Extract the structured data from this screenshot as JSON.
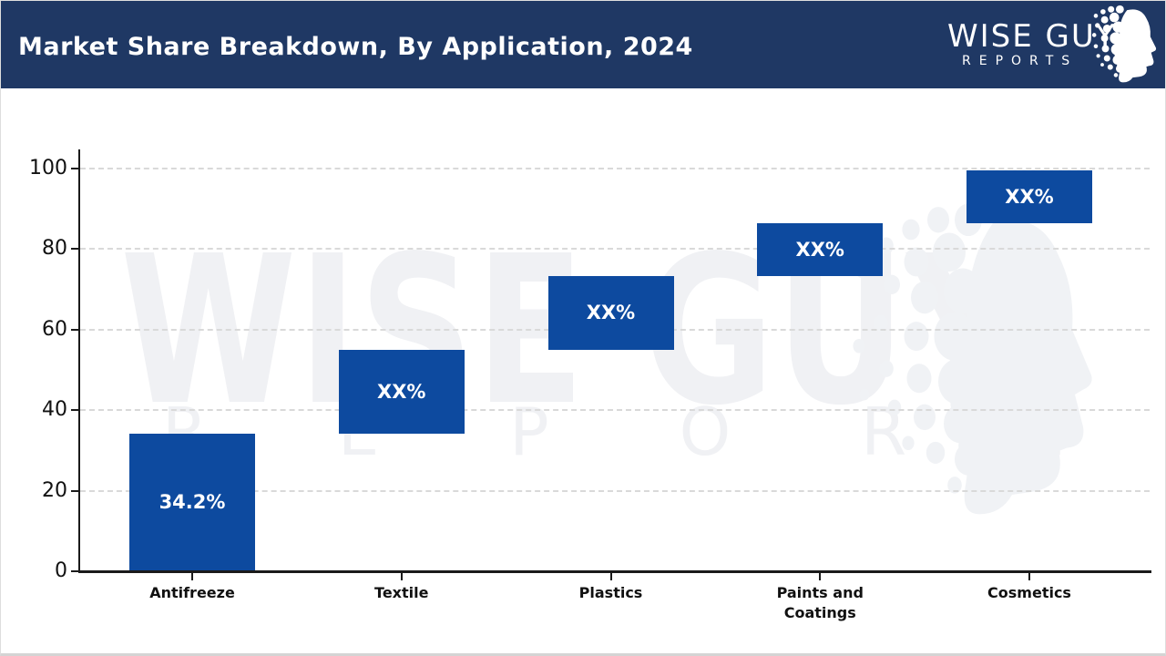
{
  "header": {
    "title": "Market Share Breakdown, By Application, 2024",
    "logo": {
      "line1": "WISE GUY",
      "line2": "REPORTS"
    }
  },
  "watermark": {
    "line1": "WISE GUY",
    "line2": "R E P O R T S"
  },
  "colors": {
    "header_bg": "#1f3864",
    "bar": "#0d4a9f",
    "grid": "#d9d9d9",
    "axis": "#1a1a1a",
    "bar_label": "#ffffff",
    "tick_label": "#111111",
    "watermark": "#f0f1f4"
  },
  "chart_data": {
    "type": "bar",
    "subtype": "waterfall",
    "title": "Market Share Breakdown, By Application, 2024",
    "xlabel": "",
    "ylabel": "",
    "categories": [
      "Antifreeze",
      "Textile",
      "Plastics",
      "Paints and Coatings",
      "Cosmetics"
    ],
    "segments": [
      {
        "category": "Antifreeze",
        "label": "34.2%",
        "start": 0,
        "end": 34.2
      },
      {
        "category": "Textile",
        "label": "XX%",
        "start": 34.2,
        "end": 55.0
      },
      {
        "category": "Plastics",
        "label": "XX%",
        "start": 55.0,
        "end": 73.3
      },
      {
        "category": "Paints and Coatings",
        "label": "XX%",
        "start": 73.3,
        "end": 86.5
      },
      {
        "category": "Cosmetics",
        "label": "XX%",
        "start": 86.5,
        "end": 99.5
      }
    ],
    "yticks": [
      0,
      20,
      40,
      60,
      80,
      100
    ],
    "ylim": [
      0,
      104
    ],
    "grid": "horizontal dashed",
    "legend": "none"
  }
}
